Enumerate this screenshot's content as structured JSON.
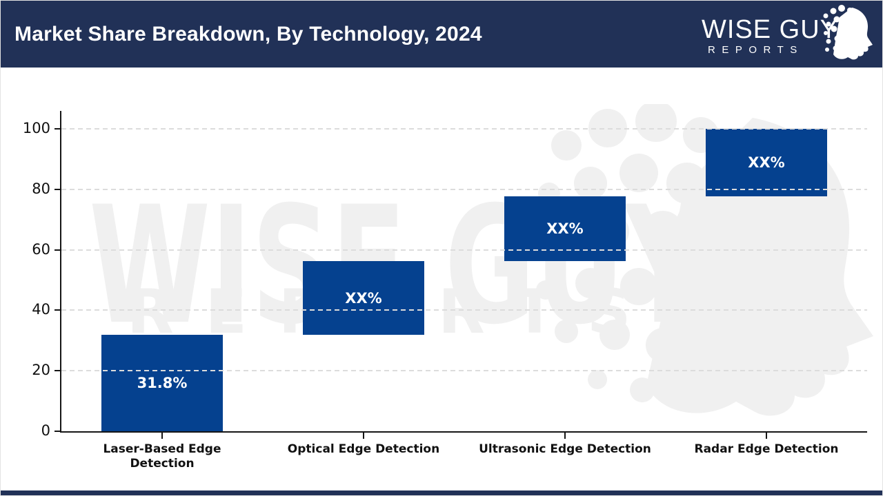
{
  "header": {
    "title": "Market Share Breakdown, By Technology, 2024",
    "logo_line1": "WISE GUY",
    "logo_line2": "REPORTS",
    "bg_color": "#213157"
  },
  "watermark": {
    "line1": "WISE GUY",
    "line2": "REPORTS"
  },
  "chart_data": {
    "type": "bar",
    "subtype": "waterfall",
    "title": "Market Share Breakdown, By Technology, 2024",
    "categories": [
      "Laser-Based Edge Detection",
      "Optical Edge Detection",
      "Ultrasonic Edge Detection",
      "Radar Edge Detection"
    ],
    "series": [
      {
        "name": "Market Share (%)",
        "segments": [
          {
            "start": 0,
            "end": 31.8,
            "label": "31.8%"
          },
          {
            "start": 31.8,
            "end": 56.3,
            "label": "XX%"
          },
          {
            "start": 56.3,
            "end": 77.7,
            "label": "XX%"
          },
          {
            "start": 77.7,
            "end": 100,
            "label": "XX%"
          }
        ]
      }
    ],
    "xlabel": "",
    "ylabel": "",
    "ylim": [
      0,
      100
    ],
    "yticks": [
      0,
      20,
      40,
      60,
      80,
      100
    ],
    "grid": "horizontal-dashed",
    "legend": "none",
    "bar_color": "#05418f",
    "bar_label_color": "#ffffff"
  },
  "colors": {
    "header_bg": "#213157",
    "footer_bg": "#213157",
    "bar": "#05418f",
    "grid": "#dcdcdc",
    "axis": "#151515",
    "watermark": "#f0f0f0"
  }
}
